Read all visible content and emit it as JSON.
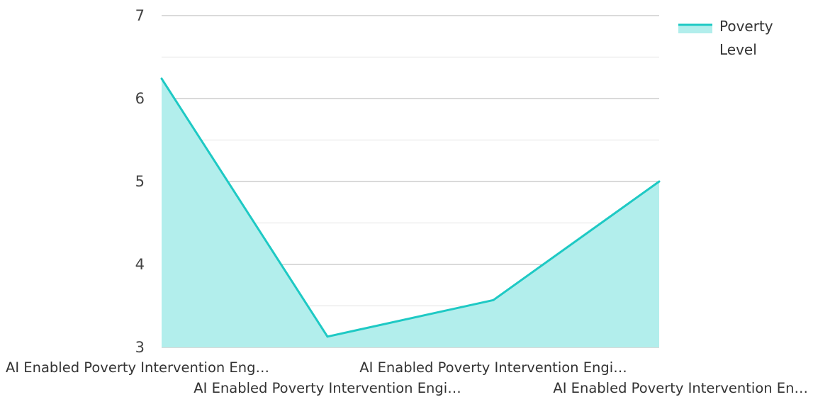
{
  "chart_data": {
    "type": "area",
    "categories": [
      "AI Enabled Poverty Intervention Eng…",
      "AI Enabled Poverty Intervention Engi…",
      "AI Enabled Poverty Intervention Engi…",
      "AI Enabled Poverty Intervention En…"
    ],
    "series": [
      {
        "name": "Poverty Level",
        "values": [
          6.24,
          3.13,
          3.57,
          5.0
        ]
      }
    ],
    "legend_label_lines": [
      "Poverty",
      "Level"
    ],
    "ylim": [
      3,
      7
    ],
    "yticks": [
      3,
      4,
      5,
      6,
      7
    ],
    "ygrid_minor_step": 0.5,
    "grid": true,
    "legend_position": "top-right",
    "colors": {
      "line": "#1ec9c4",
      "fill": "#b2eeec",
      "major_grid": "#b4b4b4",
      "minor_grid": "#e2e2e2"
    }
  }
}
